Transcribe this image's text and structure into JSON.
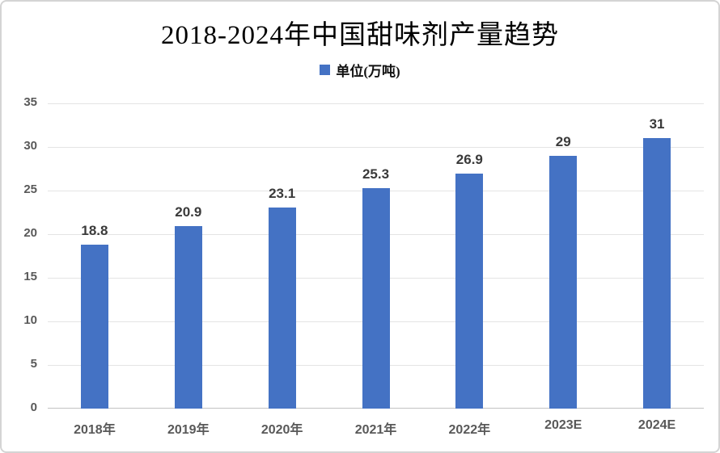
{
  "page": {
    "title": "2018-2024年中国甜味剂产量趋势"
  },
  "legend": {
    "label": "单位(万吨)"
  },
  "colors": {
    "bar": "#4472C4",
    "axis_text": "#595959",
    "value_label": "#3a3a3a",
    "gridline": "#e4e4e4",
    "baseline": "#c2c2c2"
  },
  "chart_data": {
    "type": "bar",
    "title": "2018-2024年中国甜味剂产量趋势",
    "legend_entries": [
      "单位(万吨)"
    ],
    "legend_position": "top",
    "categories": [
      "2018年",
      "2019年",
      "2020年",
      "2021年",
      "2022年",
      "2023E",
      "2024E"
    ],
    "values": [
      18.8,
      20.9,
      23.1,
      25.3,
      26.9,
      29,
      31
    ],
    "value_labels": [
      "18.8",
      "20.9",
      "23.1",
      "25.3",
      "26.9",
      "29",
      "31"
    ],
    "xlabel": "",
    "ylabel": "",
    "ylim": [
      0,
      35
    ],
    "yticks": [
      0,
      5,
      10,
      15,
      20,
      25,
      30,
      35
    ],
    "grid": true,
    "bar_color": "#4472C4"
  }
}
